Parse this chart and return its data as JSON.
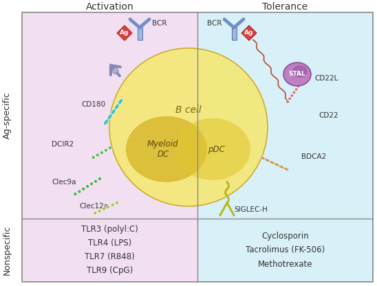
{
  "fig_width": 5.48,
  "fig_height": 4.16,
  "dpi": 100,
  "bg_color": "#ffffff",
  "pink_color": "#f2dff2",
  "blue_color": "#d8f0f8",
  "outer_bcell_color": "#f5e878",
  "outer_bcell_edge": "#c8a820",
  "myeloid_color": "#d4b020",
  "pdc_color": "#e0c830",
  "bcell_text": "B cell",
  "myeloid_text": "Myeloid\nDC",
  "pdc_text": "pDC",
  "activation_text": "Activation",
  "tolerance_text": "Tolerance",
  "ag_specific_text": "Ag-specific",
  "nonspecific_text": "Nonspecific",
  "tlr_text": "TLR3 (polyl:C)\nTLR4 (LPS)\nTLR7 (R848)\nTLR9 (CpG)",
  "cyclosporin_text": "Cyclosporin\nTacrolimus (FK-506)\nMethotrexate",
  "cd180_text": "CD180",
  "dcir2_text": "DCIR2",
  "clec9a_text": "Clec9a",
  "clec12a_text": "Clec12a",
  "siglech_text": "SIGLEC-H",
  "bdca2_text": "BDCA2",
  "cd22_text": "CD22",
  "cd22l_text": "CD22L",
  "stal_text": "STAL",
  "bcr_text": "BCR",
  "ag_text": "Ag",
  "diamond_color": "#d94040",
  "diamond_edge": "#b02020",
  "bcr_color": "#7090c8",
  "bcr_edge": "#5070a8",
  "ab_left_color": "#8888b8",
  "ab_left_edge": "#6666a0",
  "cd180_color": "#48c0b8",
  "dcir2_color": "#60b860",
  "clec9a_color": "#50b050",
  "clec12a_color": "#a8c840",
  "siglech_color": "#b8b820",
  "bdca2_color": "#c8a060",
  "cd22_color": "#d87070",
  "stal_color": "#c080c0",
  "stal_dark": "#9050a0",
  "border_color": "#888888",
  "text_color": "#333333"
}
